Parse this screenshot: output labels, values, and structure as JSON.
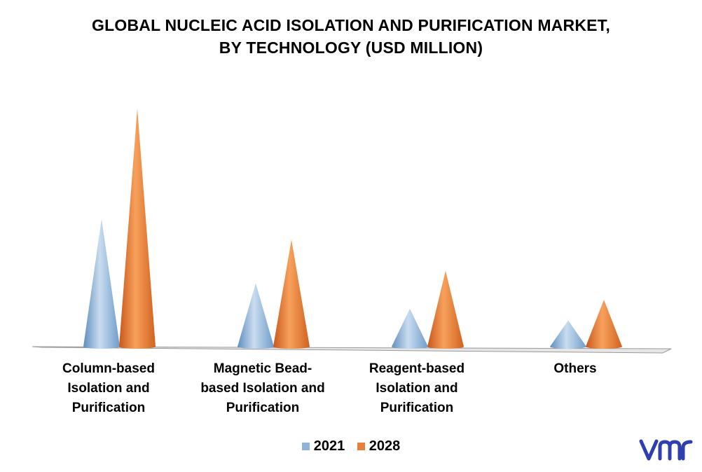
{
  "title_lines": [
    "GLOBAL NUCLEIC ACID ISOLATION AND PURIFICATION MARKET,",
    "BY TECHNOLOGY (USD MILLION)"
  ],
  "colors": {
    "series_2021": "#8fb4d8",
    "series_2028": "#e8803a"
  },
  "icons": {
    "logo": "vmr-logo"
  },
  "chart_data": {
    "type": "bar",
    "style": "3d-cone",
    "title": "GLOBAL NUCLEIC ACID ISOLATION AND PURIFICATION MARKET, BY TECHNOLOGY (USD MILLION)",
    "categories": [
      "Column-based Isolation and Purification",
      "Magnetic Bead-based Isolation and Purification",
      "Reagent-based Isolation and Purification",
      "Others"
    ],
    "category_label_lines": [
      [
        "Column-based",
        "Isolation and",
        "Purification"
      ],
      [
        "Magnetic Bead-",
        "based Isolation and",
        "Purification"
      ],
      [
        "Reagent-based",
        "Isolation and",
        "Purification"
      ],
      [
        "Others"
      ]
    ],
    "series": [
      {
        "name": "2021",
        "values": [
          185,
          92,
          55,
          38
        ]
      },
      {
        "name": "2028",
        "values": [
          345,
          155,
          110,
          68
        ]
      }
    ],
    "ylim": [
      0,
      350
    ],
    "grid": false,
    "axes_visible": false,
    "legend": "bottom-center"
  }
}
